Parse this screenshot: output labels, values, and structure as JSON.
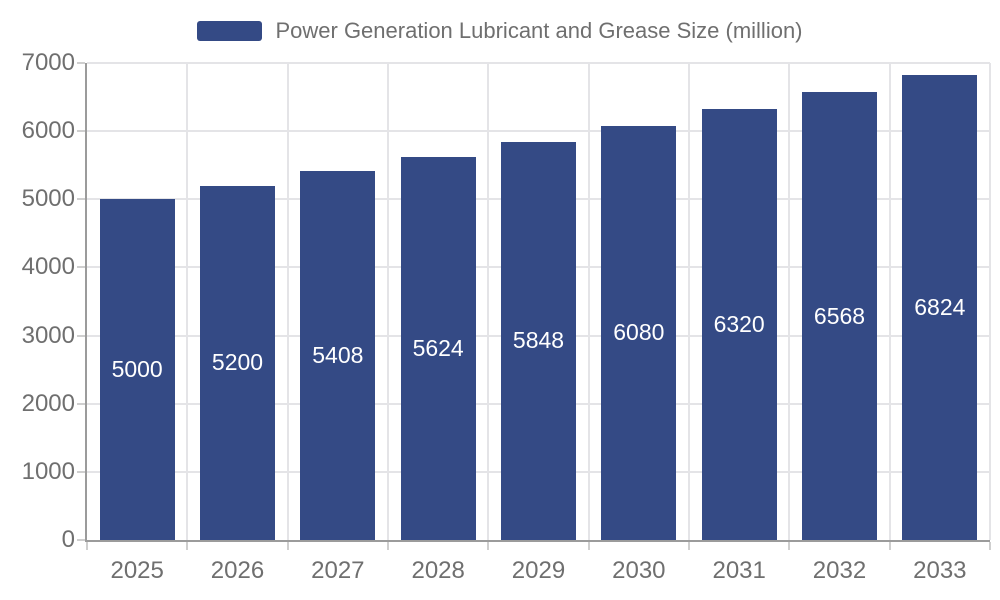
{
  "chart_data": {
    "type": "bar",
    "title": "Power Generation Lubricant and Grease Size (million)",
    "categories": [
      "2025",
      "2026",
      "2027",
      "2028",
      "2029",
      "2030",
      "2031",
      "2032",
      "2033"
    ],
    "values": [
      5000,
      5200,
      5408,
      5624,
      5848,
      6080,
      6320,
      6568,
      6824
    ],
    "value_labels": [
      "5000",
      "5200",
      "5408",
      "5624",
      "5848",
      "6080",
      "6320",
      "6568",
      "6824"
    ],
    "yticks": [
      "0",
      "1000",
      "2000",
      "3000",
      "4000",
      "5000",
      "6000",
      "7000"
    ],
    "xlabel": "",
    "ylabel": "",
    "ylim": [
      0,
      7000
    ],
    "ytick_interval": 1000,
    "grid": true,
    "legend_position": "top-center",
    "bar_width_fraction": 0.75
  },
  "colors": {
    "bar": "#344a85",
    "bar_value_text": "#ffffff",
    "axis_line": "#9b9b9b",
    "gridline": "#e4e4e7",
    "tick_mark": "#cfcfcf",
    "tick_label": "#6f6f6f",
    "legend_text": "#6f6f6f",
    "background": "#ffffff"
  }
}
